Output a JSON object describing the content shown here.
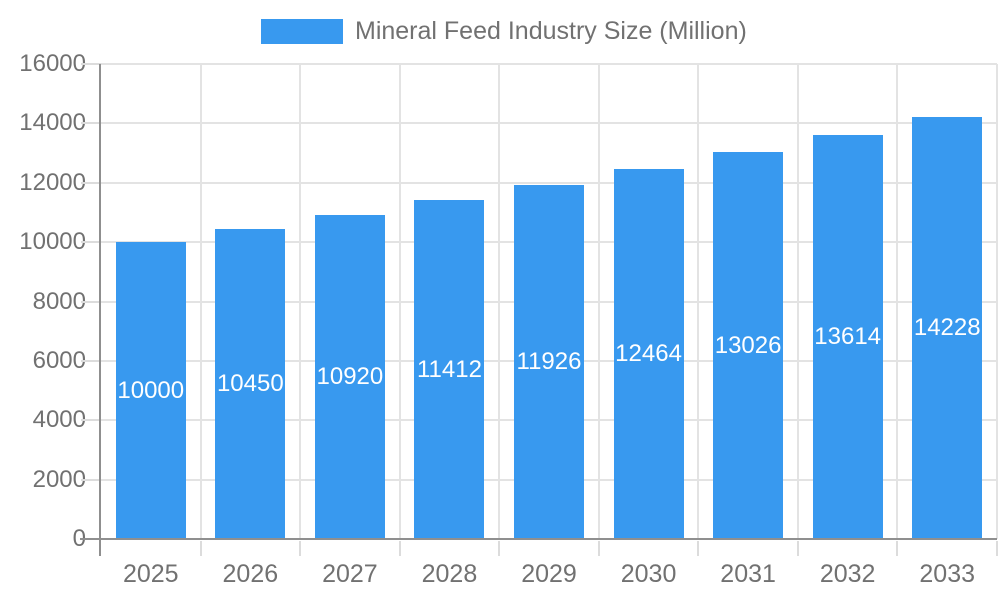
{
  "chart_data": {
    "type": "bar",
    "title": "",
    "legend": "Mineral Feed Industry Size (Million)",
    "legend_position": "top",
    "categories": [
      "2025",
      "2026",
      "2027",
      "2028",
      "2029",
      "2030",
      "2031",
      "2032",
      "2033"
    ],
    "values": [
      10000,
      10450,
      10920,
      11412,
      11926,
      12464,
      13026,
      13614,
      14228
    ],
    "bar_value_labels": [
      "10000",
      "10450",
      "10920",
      "11412",
      "11926",
      "12464",
      "13026",
      "13614",
      "14228"
    ],
    "xlabel": "",
    "ylabel": "",
    "ylim": [
      0,
      16000
    ],
    "ytick_step": 2000,
    "ytick_labels": [
      "0",
      "2000",
      "4000",
      "6000",
      "8000",
      "10000",
      "12000",
      "14000",
      "16000"
    ],
    "grid": "both",
    "colors": {
      "bar": "#3899EF",
      "bar_label_text": "#FFFFFF",
      "axis_text": "#717171",
      "legend_text": "#717171",
      "axis_line": "#8F8F8F",
      "gridline": "#E3E3E3",
      "tick": "#DCDCDC",
      "background": "#FFFFFF"
    }
  }
}
